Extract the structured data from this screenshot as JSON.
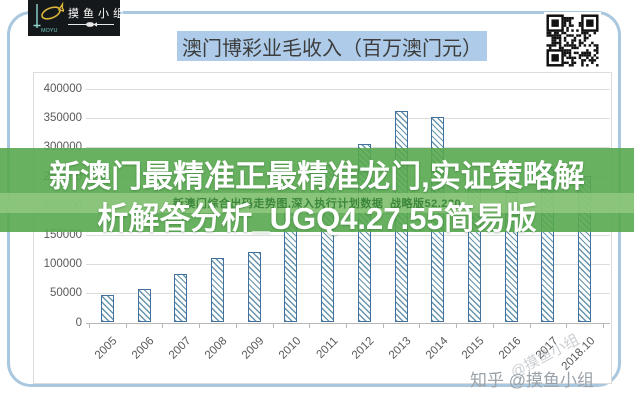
{
  "logo": {
    "group_name": "摸鱼小组",
    "sub_label": "MOYU"
  },
  "header": {
    "title": "澳门博彩业毛收入（百万澳门元）"
  },
  "overlay": {
    "line1": "新澳门最精准正最精准龙门,实证策略解",
    "line2": "析解答分析_UGQ4.27.55简易版",
    "small_watermark": "新澳门综合出码走势图,深入执行计划数据_战略版52.220"
  },
  "watermark": {
    "text": "知乎 @摸鱼小组",
    "ghost": "@摸鱼小组"
  },
  "chart_data": {
    "type": "bar",
    "title": "澳门博彩业毛收入（百万澳门元）",
    "xlabel": "",
    "ylabel": "",
    "categories": [
      "2005",
      "2006",
      "2007",
      "2008",
      "2009",
      "2010",
      "2011",
      "2012",
      "2013",
      "2014",
      "2015",
      "2016",
      "2017",
      "2018.10"
    ],
    "values": [
      47134,
      57521,
      83847,
      109826,
      120383,
      189588,
      269058,
      305235,
      361866,
      352714,
      231811,
      223210,
      265743,
      250339
    ],
    "ylim": [
      0,
      400000
    ],
    "ytick_step": 50000,
    "grid": true,
    "legend": "none",
    "bar_fill": "white-with-diagonal-hatch",
    "bar_outline_color": "#41719c",
    "hatch_color": "#4f81a0"
  },
  "colors": {
    "card_border": "#a9c7df",
    "title_banner_bg": "#aecce9",
    "overlay_green": "#58a84f",
    "overlay_stripe": "#97cd85",
    "axis_text": "#595959",
    "gridline": "#dcdcdc",
    "logo_bg": "#15181a",
    "logo_fish": "#d9b23a",
    "logo_line": "#8fd6d2"
  }
}
